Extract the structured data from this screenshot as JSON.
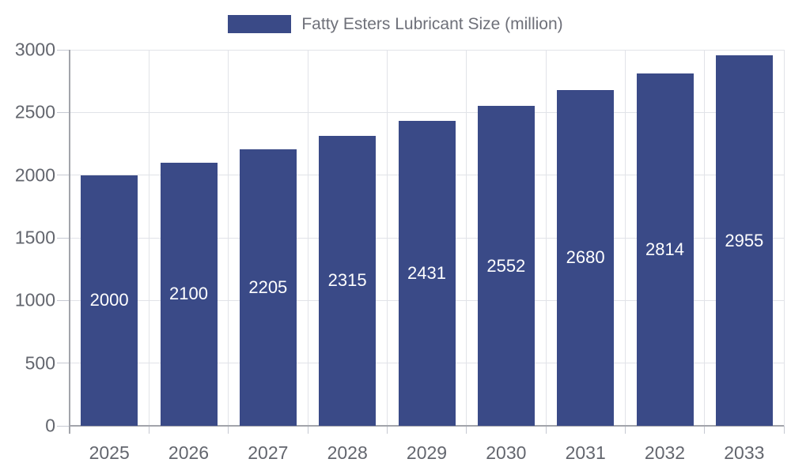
{
  "chart": {
    "colors": {
      "background": "#ffffff",
      "bar": "#3A4A87",
      "bar_value_label": "#ffffff",
      "axis_text": "#63666E",
      "legend_text": "#6E7079",
      "gridline": "#E1E3E8",
      "axis_line": "#A2A4AB",
      "tick": "#C6C9D2"
    }
  },
  "chart_data": {
    "type": "bar",
    "title": "",
    "legend": "Fatty Esters Lubricant Size (million)",
    "legend_position": "top-center",
    "categories": [
      "2025",
      "2026",
      "2027",
      "2028",
      "2029",
      "2030",
      "2031",
      "2032",
      "2033"
    ],
    "values": [
      2000,
      2100,
      2205,
      2315,
      2431,
      2552,
      2680,
      2814,
      2955
    ],
    "value_labels_position": "inside-middle",
    "xlabel": "",
    "ylabel": "",
    "ylim": [
      0,
      3000
    ],
    "ytick_step": 500,
    "yticks": [
      0,
      500,
      1000,
      1500,
      2000,
      2500,
      3000
    ],
    "grid": true
  }
}
